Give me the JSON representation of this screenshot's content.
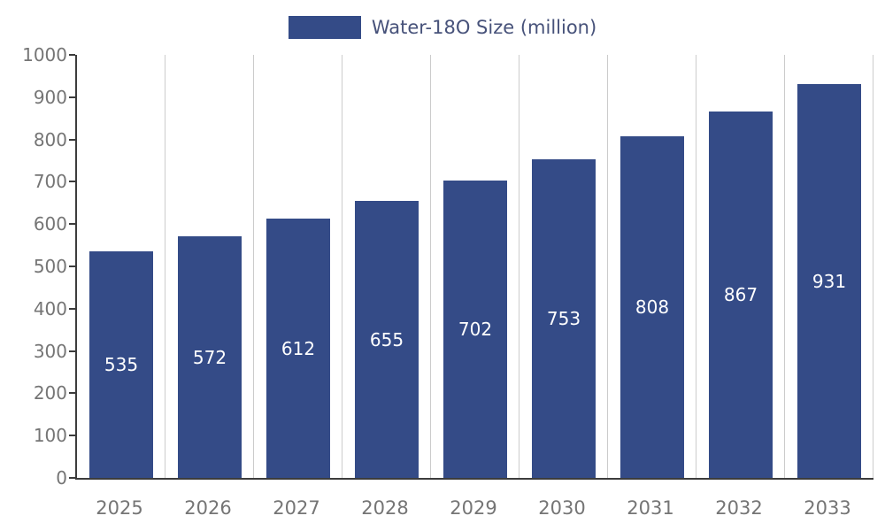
{
  "legend": {
    "label": "Water-18O Size (million)",
    "swatch_color": "#344b87"
  },
  "chart_data": {
    "type": "bar",
    "title": "",
    "series_name": "Water-18O Size (million)",
    "categories": [
      "2025",
      "2026",
      "2027",
      "2028",
      "2029",
      "2030",
      "2031",
      "2032",
      "2033"
    ],
    "values": [
      535,
      572,
      612,
      655,
      702,
      753,
      808,
      867,
      931
    ],
    "ylim": [
      0,
      1000
    ],
    "ytick_interval": 100,
    "ytick_labels": [
      "0",
      "100",
      "200",
      "300",
      "400",
      "500",
      "600",
      "700",
      "800",
      "900",
      "1000"
    ],
    "bar_color": "#344b87",
    "value_label_color": "#ffffff",
    "value_label_position": "inside-center",
    "grid": "vertical-only",
    "gridline_color": "#cccccc",
    "axis_line_color": "#3c3c3c",
    "tick_label_color": "#757575",
    "legend_position": "top-center"
  }
}
